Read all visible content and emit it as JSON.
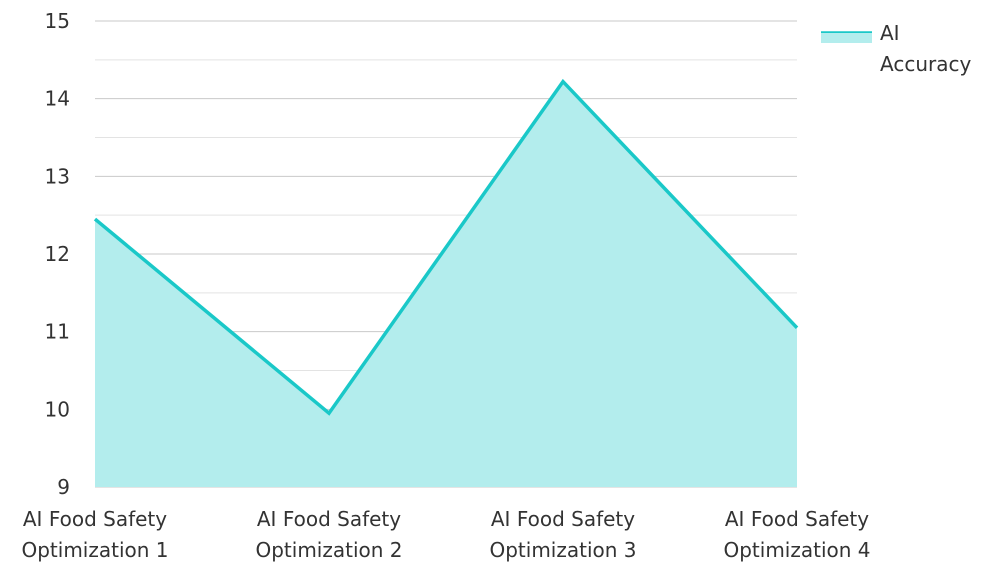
{
  "chart_data": {
    "type": "area",
    "categories": [
      "AI Food Safety Optimization 1",
      "AI Food Safety Optimization 2",
      "AI Food Safety Optimization 3",
      "AI Food Safety Optimization 4"
    ],
    "category_lines": [
      [
        "AI Food Safety",
        "Optimization 1"
      ],
      [
        "AI Food Safety",
        "Optimization 2"
      ],
      [
        "AI Food Safety",
        "Optimization 3"
      ],
      [
        "AI Food Safety",
        "Optimization 4"
      ]
    ],
    "series": [
      {
        "name": "AI Accuracy",
        "values": [
          12.45,
          9.95,
          14.22,
          11.05
        ],
        "color": "#1ac8c8",
        "fill_color": "#b3eded"
      }
    ],
    "legend": {
      "position": "top-right",
      "label_lines": [
        "AI",
        "Accuracy"
      ]
    },
    "ylim": [
      9,
      15
    ],
    "yticks": [
      "9",
      "10",
      "11",
      "12",
      "13",
      "14",
      "15"
    ],
    "grid": true,
    "title": "",
    "xlabel": "",
    "ylabel": ""
  }
}
